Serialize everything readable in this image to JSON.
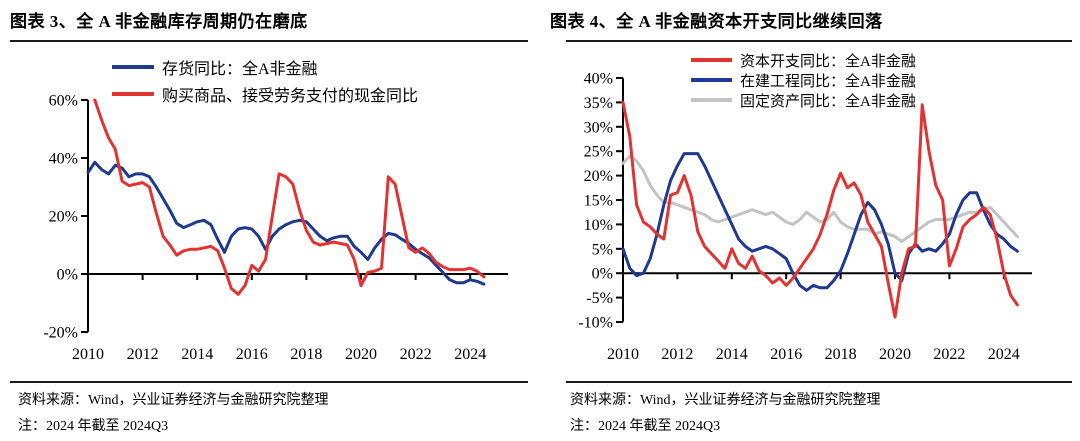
{
  "chart_data": [
    {
      "type": "line",
      "title": "图表 3、全 A 非金融库存周期仍在磨底",
      "source": "资料来源：Wind，兴业证券经济与金融研究院整理",
      "note": "注：2024 年截至 2024Q3",
      "x_tick_labels": [
        "2010",
        "2012",
        "2014",
        "2016",
        "2018",
        "2020",
        "2022",
        "2024"
      ],
      "x_tick_values": [
        2010,
        2012,
        2014,
        2016,
        2018,
        2020,
        2022,
        2024
      ],
      "y_tick_labels": [
        "60%",
        "40%",
        "20%",
        "0%",
        "-20%"
      ],
      "y_tick_values": [
        60,
        40,
        20,
        0,
        -20
      ],
      "xlim": [
        2010,
        2024.75
      ],
      "ylim": [
        -20,
        60
      ],
      "x_unit": "year, quarterly data points",
      "y_unit": "percent YoY",
      "grid": "off",
      "legend_position": "top",
      "series": [
        {
          "name": "存货同比：全A非金融",
          "color": "#1e3a8e",
          "x_start": 2010.0,
          "x_step": 0.25,
          "values": [
            35,
            38.5,
            36,
            34.5,
            37.5,
            36.5,
            33.5,
            34.5,
            34.5,
            33.5,
            30,
            26,
            22,
            17.5,
            16,
            17,
            18,
            18.5,
            17,
            12,
            7.5,
            13,
            15.5,
            16,
            15.5,
            13,
            8.5,
            13,
            15.5,
            17,
            18,
            18.5,
            18,
            15.5,
            13,
            11.5,
            12.5,
            13,
            13,
            9.5,
            7.5,
            5,
            9,
            12,
            14,
            13.5,
            12,
            10.5,
            8.5,
            7,
            5.5,
            3,
            0.5,
            -2,
            -3,
            -3,
            -2,
            -2.5,
            -3.5
          ]
        },
        {
          "name": "购买商品、接受劳务支付的现金同比",
          "color": "#e23333",
          "x_start": 2010.25,
          "x_step": 0.25,
          "values": [
            60,
            53,
            47,
            43,
            32,
            30.5,
            31,
            31.5,
            30,
            21,
            13,
            10,
            6.5,
            8,
            8.5,
            8.5,
            9,
            9.5,
            8,
            2,
            -5,
            -7,
            -4,
            3,
            1,
            5,
            20,
            34.5,
            33.5,
            31,
            22,
            15,
            11,
            10,
            10.5,
            11,
            10.5,
            10,
            5,
            -4,
            0.5,
            1,
            2,
            33.5,
            31,
            20,
            9,
            7.5,
            9,
            7,
            4,
            2.5,
            1.5,
            1.5,
            1.5,
            2,
            1,
            -1
          ]
        }
      ]
    },
    {
      "type": "line",
      "title": "图表 4、全 A 非金融资本开支同比继续回落",
      "source": "资料来源：Wind，兴业证券经济与金融研究院整理",
      "note": "注：2024 年截至 2024Q3",
      "x_tick_labels": [
        "2010",
        "2012",
        "2014",
        "2016",
        "2018",
        "2020",
        "2022",
        "2024"
      ],
      "x_tick_values": [
        2010,
        2012,
        2014,
        2016,
        2018,
        2020,
        2022,
        2024
      ],
      "y_tick_labels": [
        "40%",
        "35%",
        "30%",
        "25%",
        "20%",
        "15%",
        "10%",
        "5%",
        "0%",
        "-5%",
        "-10%"
      ],
      "y_tick_values": [
        40,
        35,
        30,
        25,
        20,
        15,
        10,
        5,
        0,
        -5,
        -10
      ],
      "xlim": [
        2010,
        2024.75
      ],
      "ylim": [
        -10,
        40
      ],
      "x_unit": "year, quarterly data points",
      "y_unit": "percent YoY",
      "grid": "off",
      "legend_position": "top",
      "series": [
        {
          "name": "资本开支同比：全A非金融",
          "color": "#e23333",
          "x_start": 2010.0,
          "x_step": 0.25,
          "values": [
            35,
            28,
            14,
            10.5,
            9.5,
            8,
            7,
            16,
            16.5,
            20,
            16,
            8.5,
            5.5,
            4,
            2.5,
            1,
            5,
            2,
            1,
            3.5,
            0.5,
            -0.5,
            -2,
            -1,
            -2.5,
            -1,
            1,
            3,
            5,
            8,
            12,
            17,
            20.5,
            17.5,
            18.5,
            16,
            10.5,
            8,
            5.5,
            -2,
            -9,
            0,
            5,
            5.5,
            34.5,
            25,
            18,
            15,
            1.5,
            5,
            9.5,
            11,
            12,
            13.5,
            12,
            7,
            0,
            -4.5,
            -6.5
          ]
        },
        {
          "name": "在建工程同比：全A非金融",
          "color": "#1e3a8e",
          "x_start": 2010.0,
          "x_step": 0.25,
          "values": [
            5,
            1,
            -0.5,
            0,
            3,
            8,
            14,
            19,
            22,
            24.5,
            24.5,
            24.5,
            22,
            19,
            16,
            13,
            10,
            7,
            5.5,
            4.5,
            5,
            5.5,
            5,
            4,
            3,
            0,
            -2.5,
            -3.5,
            -2.5,
            -3,
            -3,
            -1.5,
            0.5,
            4,
            8,
            12,
            14.5,
            13,
            10,
            6,
            0,
            -1.5,
            4,
            6,
            4.5,
            5,
            4.5,
            6,
            8,
            12,
            15,
            16.5,
            16.5,
            13,
            10,
            8,
            7,
            5.5,
            4.5
          ]
        },
        {
          "name": "固定资产同比：全A非金融",
          "color": "#c3c3c3",
          "x_start": 2010.0,
          "x_step": 0.25,
          "values": [
            22.5,
            24,
            23,
            21,
            18,
            16,
            14.5,
            14.5,
            14,
            13.5,
            13,
            12.5,
            12,
            11,
            10.5,
            11,
            11.5,
            12,
            12.5,
            13,
            12.5,
            12,
            12.5,
            11.5,
            10.5,
            10,
            11,
            12.5,
            11.5,
            10.5,
            11,
            12.5,
            10.5,
            9.5,
            9,
            9,
            9,
            8,
            8.5,
            8,
            7.5,
            6.5,
            7.5,
            8.5,
            9.5,
            10.5,
            11,
            11,
            11,
            11.5,
            12,
            12.5,
            12.5,
            13,
            13.5,
            12,
            10.5,
            9,
            7.5
          ]
        }
      ]
    }
  ]
}
